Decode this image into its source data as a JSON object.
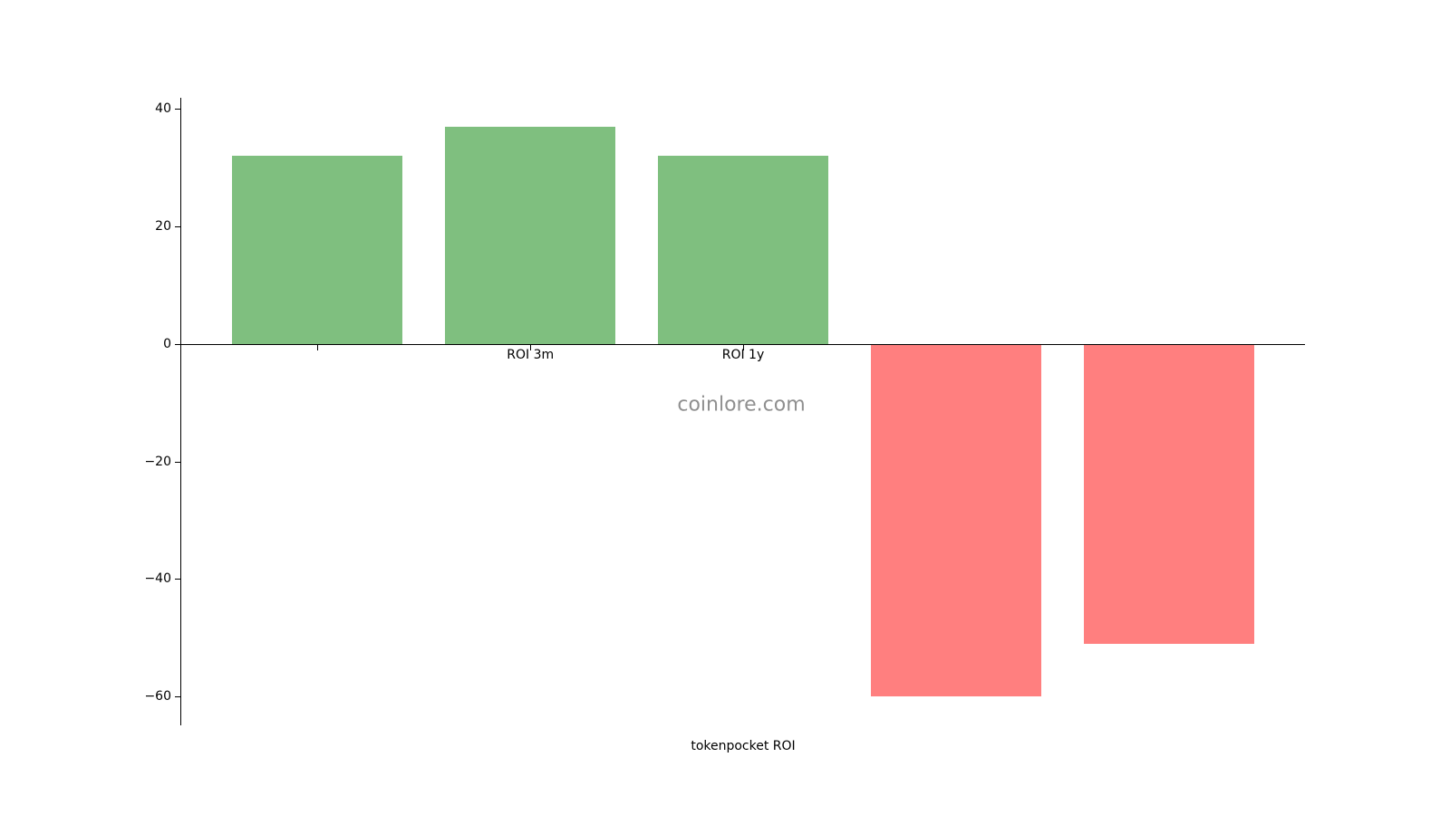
{
  "chart_data": {
    "type": "bar",
    "categories": [
      "",
      "ROI 3m",
      "ROI 1y",
      "",
      ""
    ],
    "values": [
      32,
      37,
      32,
      -60,
      -51
    ],
    "bar_colors": [
      "#7fbf7f",
      "#7fbf7f",
      "#7fbf7f",
      "#ff7f7f",
      "#ff7f7f"
    ],
    "positive_color": "#7fbf7f",
    "negative_color": "#ff7f7f",
    "title": "",
    "xlabel": "tokenpocket ROI",
    "ylabel": "",
    "ytick_values": [
      40,
      20,
      0,
      -20,
      -40,
      -60
    ],
    "ytick_labels": [
      "40",
      "20",
      "0",
      "−20",
      "−40",
      "−60"
    ],
    "ylim": [
      -64.9,
      41.9
    ],
    "xlim": [
      -0.64,
      4.64
    ],
    "bar_width": 0.8,
    "grid": false,
    "legend": false,
    "axis_color": "#000000",
    "text_color": "#000000",
    "watermark": "coinlore.com",
    "watermark_color": "#8f8f8f",
    "background_color": "#ffffff"
  }
}
